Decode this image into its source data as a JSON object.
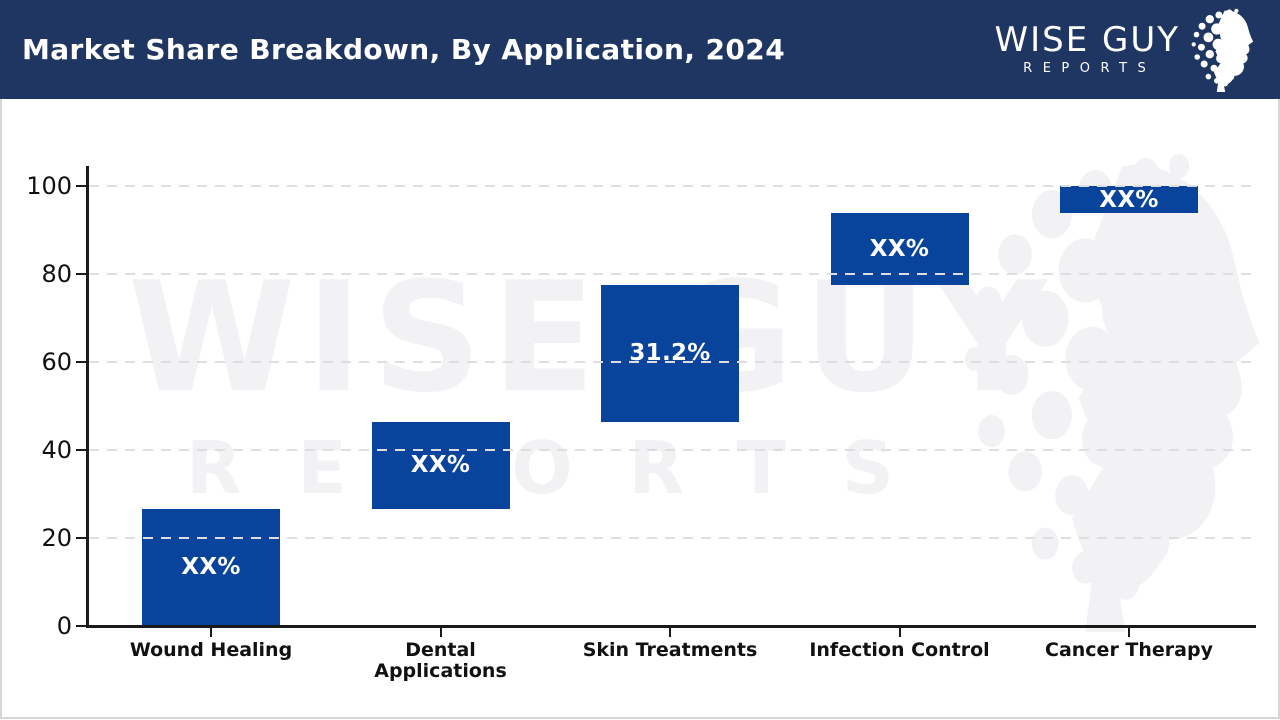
{
  "header": {
    "title": "Market Share Breakdown, By Application, 2024",
    "background": "#1F3663",
    "logo": {
      "name_top": "WISE GUY",
      "name_bottom": "REPORTS"
    }
  },
  "watermark": {
    "text_top": "WISE GUY",
    "text_bottom": "REPORTS"
  },
  "chart_data": {
    "type": "bar",
    "variant": "stacked-waterfall",
    "title": "Market Share Breakdown, By Application, 2024",
    "categories": [
      "Wound Healing",
      "Dental Applications",
      "Skin Treatments",
      "Infection Control",
      "Cancer Therapy"
    ],
    "display_categories": [
      "Wound Healing",
      "Dental\nApplications",
      "Skin Treatments",
      "Infection Control",
      "Cancer Therapy"
    ],
    "series": [
      {
        "name": "Market share (%)",
        "values": [
          26.7,
          19.7,
          31.2,
          16.2,
          6.2
        ]
      }
    ],
    "segment_starts": [
      0,
      26.7,
      46.4,
      77.6,
      93.8
    ],
    "bar_labels": [
      "XX%",
      "XX%",
      "31.2%",
      "XX%",
      "XX%"
    ],
    "ylim": [
      0,
      100
    ],
    "yticks": [
      0,
      20,
      40,
      60,
      80,
      100
    ],
    "xlabel": "",
    "ylabel": "",
    "legend": "none",
    "grid": {
      "axis": "y",
      "style": "dashed",
      "color": "#dedee1"
    },
    "bar_color": "#08439C",
    "bar_label_color": "#FFFFFF",
    "axis_color": "#1a1a1a"
  }
}
